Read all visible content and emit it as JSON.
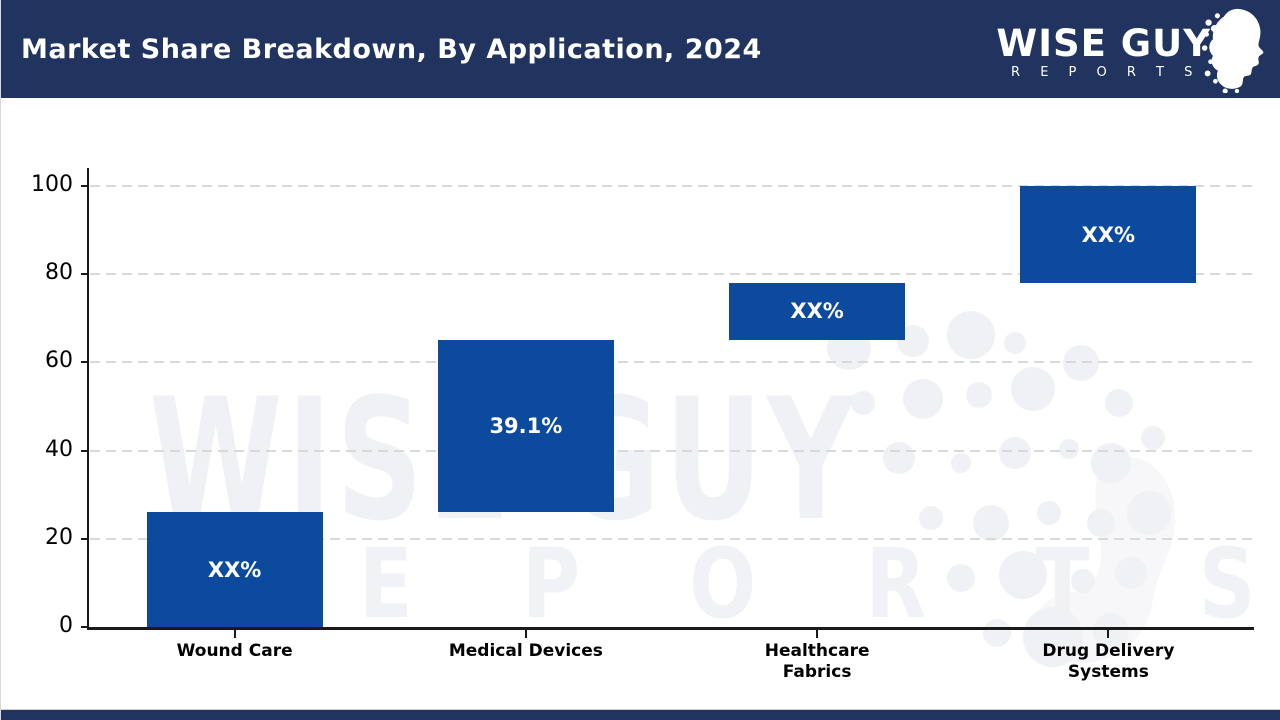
{
  "header": {
    "title": "Market Share Breakdown, By Application, 2024",
    "logo": {
      "brand": "WISE GUY",
      "subbrand": "R E P O R T S"
    }
  },
  "watermark": {
    "brand": "WISE GUY",
    "subbrand": "R E P O R T S"
  },
  "chart_data": {
    "type": "bar",
    "subtype": "floating-waterfall",
    "title": "Market Share Breakdown, By Application, 2024",
    "categories": [
      "Wound Care",
      "Medical Devices",
      "Healthcare Fabrics",
      "Drug Delivery Systems"
    ],
    "bars": [
      {
        "category": "Wound Care",
        "start": 0,
        "end": 26,
        "label": "XX%"
      },
      {
        "category": "Medical Devices",
        "start": 26,
        "end": 65.1,
        "label": "39.1%"
      },
      {
        "category": "Healthcare Fabrics",
        "start": 65.1,
        "end": 78,
        "label": "XX%"
      },
      {
        "category": "Drug Delivery Systems",
        "start": 78,
        "end": 100,
        "label": "XX%"
      }
    ],
    "xlabel": "",
    "ylabel": "",
    "ylim": [
      0,
      100
    ],
    "yticks": [
      0,
      20,
      40,
      60,
      80,
      100
    ],
    "grid": "horizontal-dashed",
    "legend": "none",
    "bar_color": "#0c4a9e",
    "bar_label_color": "#ffffff"
  },
  "colors": {
    "header_bg": "#21345f",
    "footer_bg": "#21345f",
    "bar": "#0c4a9e",
    "grid": "#d9d9d9",
    "axis": "#1a1a1a",
    "watermark": "#f0f1f4"
  }
}
